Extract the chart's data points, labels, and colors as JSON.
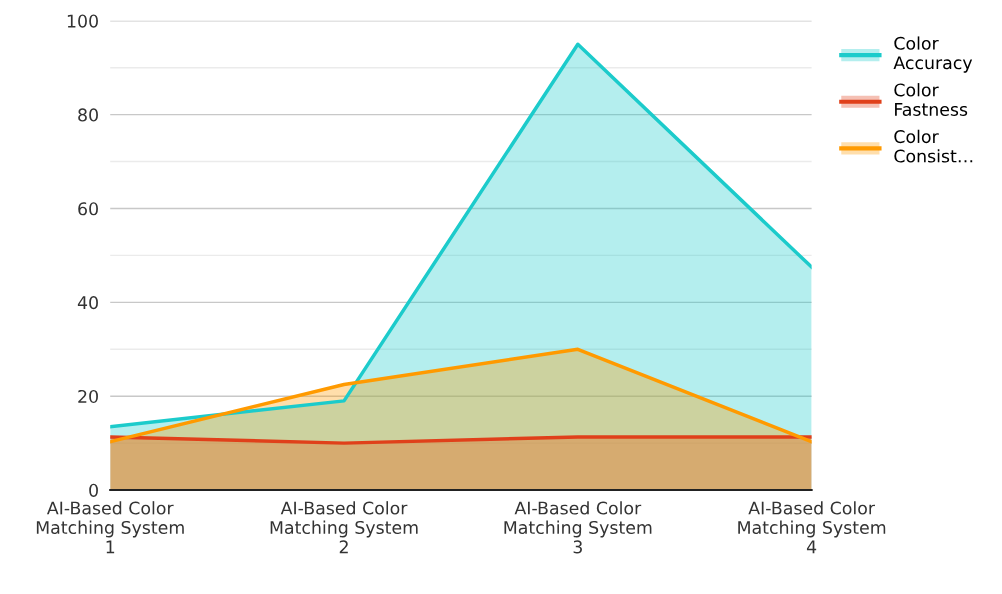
{
  "chart_data": {
    "type": "area",
    "categories": [
      "AI-Based Color\nMatching System\n1",
      "AI-Based Color\nMatching System\n2",
      "AI-Based Color\nMatching System\n3",
      "AI-Based Color\nMatching System\n4"
    ],
    "series": [
      {
        "name": "Color\nAccuracy",
        "color": "#1ccbcb",
        "values": [
          13.5,
          19,
          95,
          47.5
        ]
      },
      {
        "name": "Color\nFastness",
        "color": "#e0401a",
        "values": [
          11.3,
          10,
          11.3,
          11.3
        ]
      },
      {
        "name": "Color\nConsist…",
        "color": "#ff9a00",
        "values": [
          10.3,
          22.5,
          30,
          10.3
        ]
      }
    ],
    "ylim": [
      0,
      100
    ],
    "yticks": [
      0,
      20,
      40,
      60,
      80,
      100
    ],
    "grid": "y",
    "legend": "top right"
  }
}
